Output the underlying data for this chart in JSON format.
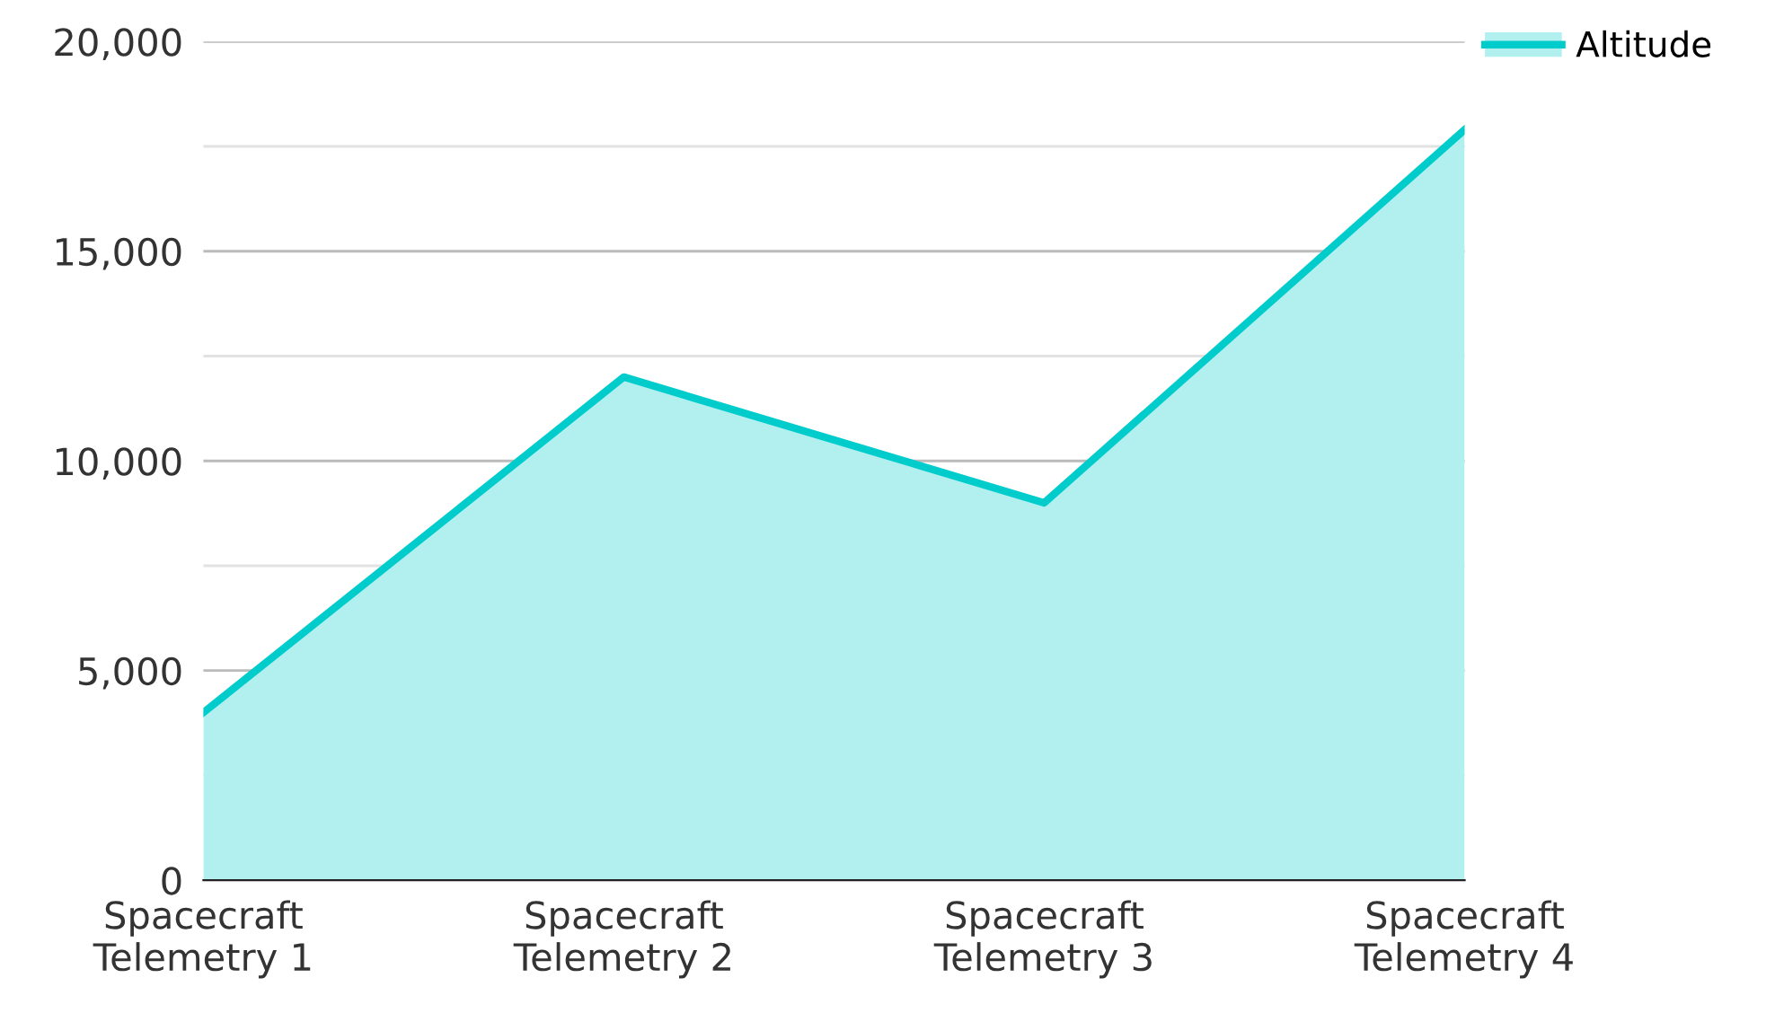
{
  "chart_data": {
    "type": "area",
    "categories": [
      "Spacecraft\nTelemetry 1",
      "Spacecraft\nTelemetry 2",
      "Spacecraft\nTelemetry 3",
      "Spacecraft\nTelemetry 4"
    ],
    "series": [
      {
        "name": "Altitude",
        "color": "#00cccc",
        "values": [
          4000,
          12000,
          9000,
          17900
        ]
      }
    ],
    "ylim": [
      0,
      20000
    ],
    "yticks": [
      {
        "value": 0,
        "label": "0"
      },
      {
        "value": 2500,
        "label": null
      },
      {
        "value": 5000,
        "label": "5,000"
      },
      {
        "value": 7500,
        "label": null
      },
      {
        "value": 10000,
        "label": "10,000"
      },
      {
        "value": 12500,
        "label": null
      },
      {
        "value": 15000,
        "label": "15,000"
      },
      {
        "value": 17500,
        "label": null
      },
      {
        "value": 20000,
        "label": "20,000"
      }
    ],
    "grid": "y",
    "legend": "top right"
  }
}
